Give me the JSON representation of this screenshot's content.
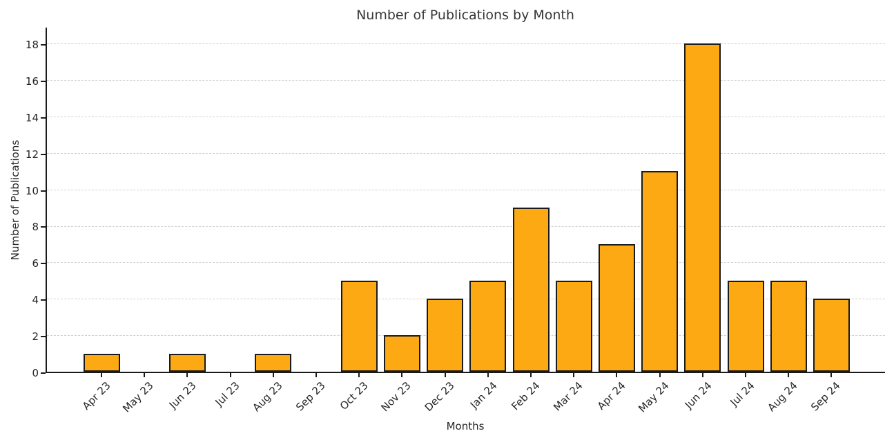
{
  "chart_data": {
    "type": "bar",
    "title": "Number of Publications by Month",
    "xlabel": "Months",
    "ylabel": "Number of Publications",
    "categories": [
      "Apr 23",
      "May 23",
      "Jun 23",
      "Jul 23",
      "Aug 23",
      "Sep 23",
      "Oct 23",
      "Nov 23",
      "Dec 23",
      "Jan 24",
      "Feb 24",
      "Mar 24",
      "Apr 24",
      "May 24",
      "Jun 24",
      "Jul 24",
      "Aug 24",
      "Sep 24"
    ],
    "values": [
      1,
      0,
      1,
      0,
      1,
      0,
      5,
      2,
      4,
      5,
      9,
      5,
      7,
      11,
      18,
      5,
      5,
      4
    ],
    "yticks": [
      0,
      2,
      4,
      6,
      8,
      10,
      12,
      14,
      16,
      18
    ],
    "ylim": [
      0,
      18.95
    ],
    "grid": "horizontal-dashed",
    "legend": "none",
    "style": {
      "bar_fill": "#FCA913",
      "bar_edge": "#1a1a1a",
      "grid_color": "#cfcfcf",
      "axis_color": "#1a1a1a",
      "text_color": "#262626",
      "background": "#ffffff"
    }
  }
}
